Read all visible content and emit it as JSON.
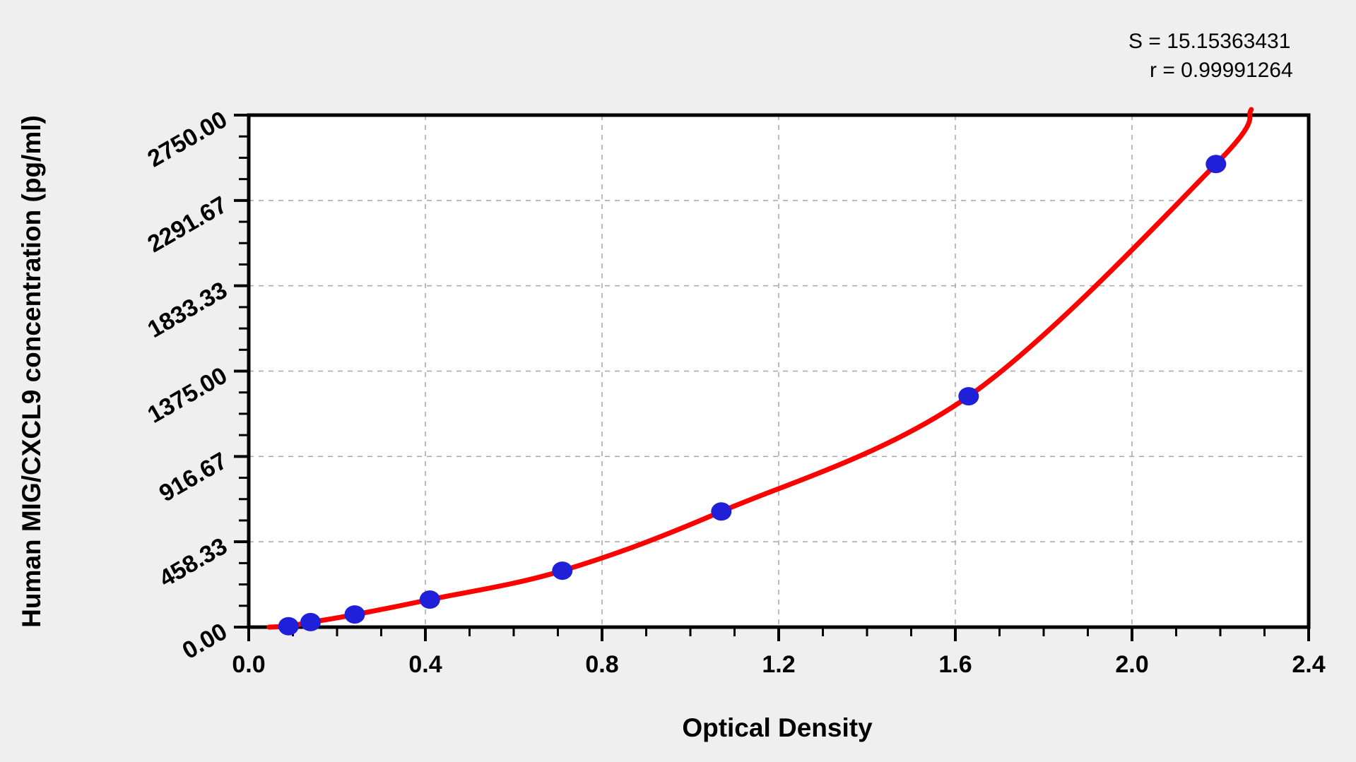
{
  "page": {
    "background_color": "#efefef",
    "plot_background_color": "#ffffff"
  },
  "stats": {
    "s_text": "S = 15.15363431",
    "r_text": "r = 0.99991264"
  },
  "chart_data": {
    "type": "scatter",
    "title": "",
    "xlabel": "Optical Density",
    "ylabel": "Human MIG/CXCL9 concentration (pg/ml)",
    "xlim": [
      0,
      2.4
    ],
    "ylim": [
      0,
      2750
    ],
    "x_major_ticks": [
      0.0,
      0.4,
      0.8,
      1.2,
      1.6,
      2.0,
      2.4
    ],
    "x_tick_labels": [
      "0.0",
      "0.4",
      "0.8",
      "1.2",
      "1.6",
      "2.0",
      "2.4"
    ],
    "x_minor_divisions_per_major": 4,
    "y_major_ticks": [
      0,
      458.33,
      916.67,
      1375.0,
      1833.33,
      2291.67,
      2750.0
    ],
    "y_tick_labels": [
      "0.00",
      "458.33",
      "916.67",
      "1375.00",
      "1833.33",
      "2291.67",
      "2750.00"
    ],
    "y_minor_divisions_per_major": 4,
    "grid": "dashed-major",
    "legend": null,
    "fit_statistics": {
      "S": "15.15363431",
      "r": "0.99991264"
    },
    "series": [
      {
        "name": "standard-points",
        "type": "scatter",
        "color": "#2020d8",
        "points": [
          {
            "od": 0.09,
            "concentration": 5
          },
          {
            "od": 0.14,
            "concentration": 27
          },
          {
            "od": 0.24,
            "concentration": 68
          },
          {
            "od": 0.41,
            "concentration": 148
          },
          {
            "od": 0.71,
            "concentration": 303
          },
          {
            "od": 1.07,
            "concentration": 621
          },
          {
            "od": 1.63,
            "concentration": 1240
          },
          {
            "od": 2.19,
            "concentration": 2487
          }
        ]
      },
      {
        "name": "fitted-curve",
        "type": "line",
        "color": "#ff0000",
        "points": [
          {
            "od": 0.046,
            "concentration": 0
          },
          {
            "od": 0.09,
            "concentration": 6
          },
          {
            "od": 0.14,
            "concentration": 26
          },
          {
            "od": 0.24,
            "concentration": 67
          },
          {
            "od": 0.41,
            "concentration": 148
          },
          {
            "od": 0.71,
            "concentration": 303
          },
          {
            "od": 1.07,
            "concentration": 621
          },
          {
            "od": 1.63,
            "concentration": 1240
          },
          {
            "od": 2.19,
            "concentration": 2487
          },
          {
            "od": 2.27,
            "concentration": 2780
          }
        ]
      }
    ],
    "style": {
      "grid_color": "#a6a6a6",
      "frame_color": "#000000",
      "curve_color": "#ff0000",
      "point_color": "#2020d8"
    }
  }
}
